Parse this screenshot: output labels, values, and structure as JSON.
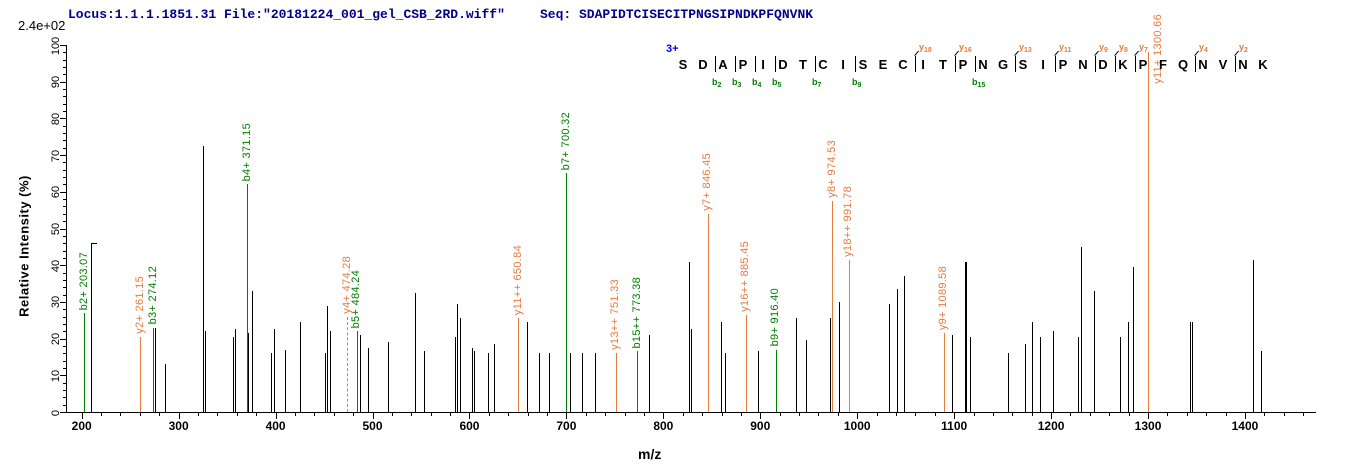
{
  "header": {
    "locus_file": "Locus:1.1.1.1851.31 File:\"20181224_001_gel_CSB_2RD.wiff\"",
    "seq_label": "Seq: SDAPIDTCISECITPNGSIPNDKPFQNVNK"
  },
  "y_axis": {
    "title": "Relative  Intensity (%)",
    "top_scale_label": "2.4e+02",
    "tick_min": 0,
    "tick_max": 100,
    "tick_step": 10,
    "minor_step": 2
  },
  "x_axis": {
    "title": "m/z",
    "tick_min": 200,
    "tick_max": 1400,
    "tick_step": 100,
    "minor_step": 20,
    "minor_max": 1460
  },
  "precursor": {
    "charge_label": "3+"
  },
  "sequence": {
    "residues": [
      "S",
      "D",
      "A",
      "P",
      "I",
      "D",
      "T",
      "C",
      "I",
      "S",
      "E",
      "C",
      "I",
      "T",
      "P",
      "N",
      "G",
      "S",
      "I",
      "P",
      "N",
      "D",
      "K",
      "P",
      "F",
      "Q",
      "N",
      "V",
      "N",
      "K"
    ],
    "b_ions": [
      2,
      3,
      4,
      5,
      7,
      9,
      15
    ],
    "y_ions": [
      18,
      16,
      13,
      11,
      9,
      8,
      7,
      4,
      2
    ]
  },
  "colors": {
    "b_ion": "#007E00",
    "y_ion": "#E57C3F",
    "peak_black": "#000000",
    "header_blue": "#00008B",
    "charge_blue": "#0000EE",
    "axis": "#000000",
    "background": "#FFFFFF"
  },
  "chart_data": {
    "type": "bar",
    "title": "MS/MS fragmentation spectrum",
    "xlabel": "m/z",
    "ylabel": "Relative Intensity (%)",
    "xlim": [
      185,
      1473
    ],
    "ylim": [
      0,
      100
    ],
    "grid": false,
    "ion_peaks": [
      {
        "mz": 203.07,
        "intensity": 27,
        "ion": "b",
        "label": "b2+ 203.07"
      },
      {
        "mz": 261.15,
        "intensity": 20.5,
        "ion": "y",
        "label": "y2+ 261.15"
      },
      {
        "mz": 274.12,
        "intensity": 23,
        "ion": "b",
        "label": "b3+ 274.12"
      },
      {
        "mz": 371.15,
        "intensity": 62,
        "ion": "b",
        "label": "b4+ 371.15"
      },
      {
        "mz": 474.28,
        "intensity": 26,
        "ion": "y",
        "label": "y4+ 474.28",
        "dashed": true
      },
      {
        "mz": 484.24,
        "intensity": 22,
        "ion": "b",
        "label": "b5+ 484.24"
      },
      {
        "mz": 650.84,
        "intensity": 25.5,
        "ion": "y",
        "label": "y11++ 650.84"
      },
      {
        "mz": 700.32,
        "intensity": 65,
        "ion": "b",
        "label": "b7+ 700.32"
      },
      {
        "mz": 751.33,
        "intensity": 16,
        "ion": "y",
        "label": "y13++ 751.33"
      },
      {
        "mz": 773.38,
        "intensity": 16.5,
        "ion": "b",
        "label": "b15++ 773.38"
      },
      {
        "mz": 846.45,
        "intensity": 54,
        "ion": "y",
        "label": "y7+ 846.45"
      },
      {
        "mz": 885.45,
        "intensity": 26.5,
        "ion": "y",
        "label": "y16++ 885.45"
      },
      {
        "mz": 916.4,
        "intensity": 17,
        "ion": "b",
        "label": "b9+ 916.40"
      },
      {
        "mz": 974.53,
        "intensity": 57.5,
        "ion": "y",
        "label": "y8+ 974.53"
      },
      {
        "mz": 991.78,
        "intensity": 41.5,
        "ion": "y",
        "label": "y18++ 991.78"
      },
      {
        "mz": 1089.58,
        "intensity": 21.5,
        "ion": "y",
        "label": "y9+ 1089.58"
      },
      {
        "mz": 1300.66,
        "intensity": 98,
        "ion": "y",
        "label": "y11+ 1300.66",
        "label_side": true
      }
    ],
    "black_peaks": [
      [
        210.3,
        46,
        "cap"
      ],
      [
        276.5,
        23
      ],
      [
        286,
        13
      ],
      [
        325.5,
        72.5
      ],
      [
        327.5,
        22
      ],
      [
        356.5,
        20.5
      ],
      [
        358.5,
        22.5
      ],
      [
        372.5,
        21.5
      ],
      [
        376.5,
        33
      ],
      [
        396,
        16
      ],
      [
        399,
        22.5
      ],
      [
        410,
        17
      ],
      [
        426,
        24.5
      ],
      [
        452,
        16
      ],
      [
        454,
        29
      ],
      [
        456.5,
        22
      ],
      [
        487.5,
        21
      ],
      [
        496,
        17.5
      ],
      [
        516,
        19
      ],
      [
        544,
        32.5
      ],
      [
        554,
        16.5
      ],
      [
        585.5,
        20.5
      ],
      [
        587.5,
        29.5
      ],
      [
        591,
        25.5
      ],
      [
        603,
        17.5
      ],
      [
        605.5,
        16.5
      ],
      [
        619.5,
        16
      ],
      [
        626,
        18.5
      ],
      [
        660,
        24.5
      ],
      [
        672,
        16
      ],
      [
        682.5,
        16
      ],
      [
        704,
        16
      ],
      [
        717,
        16
      ],
      [
        730,
        16
      ],
      [
        786,
        21
      ],
      [
        827,
        41
      ],
      [
        829,
        22.5
      ],
      [
        860,
        24.5
      ],
      [
        864.5,
        16
      ],
      [
        898,
        16.5
      ],
      [
        937,
        25.5
      ],
      [
        948,
        19.5
      ],
      [
        972.5,
        25.5
      ],
      [
        982,
        30
      ],
      [
        1033.5,
        29.5
      ],
      [
        1042,
        33.5
      ],
      [
        1048.5,
        37
      ],
      [
        1098,
        21
      ],
      [
        1111.5,
        41
      ],
      [
        1113,
        41
      ],
      [
        1117,
        20.5
      ],
      [
        1156,
        16
      ],
      [
        1174,
        18.5
      ],
      [
        1181,
        24.5
      ],
      [
        1189.5,
        20.5
      ],
      [
        1202,
        22
      ],
      [
        1228,
        20.5
      ],
      [
        1231,
        45
      ],
      [
        1245,
        33
      ],
      [
        1272,
        20.5
      ],
      [
        1280,
        24.5
      ],
      [
        1285,
        39.5
      ],
      [
        1343.5,
        24.5
      ],
      [
        1345.5,
        24.5
      ],
      [
        1408.5,
        41.5
      ],
      [
        1417,
        16.5
      ]
    ]
  }
}
